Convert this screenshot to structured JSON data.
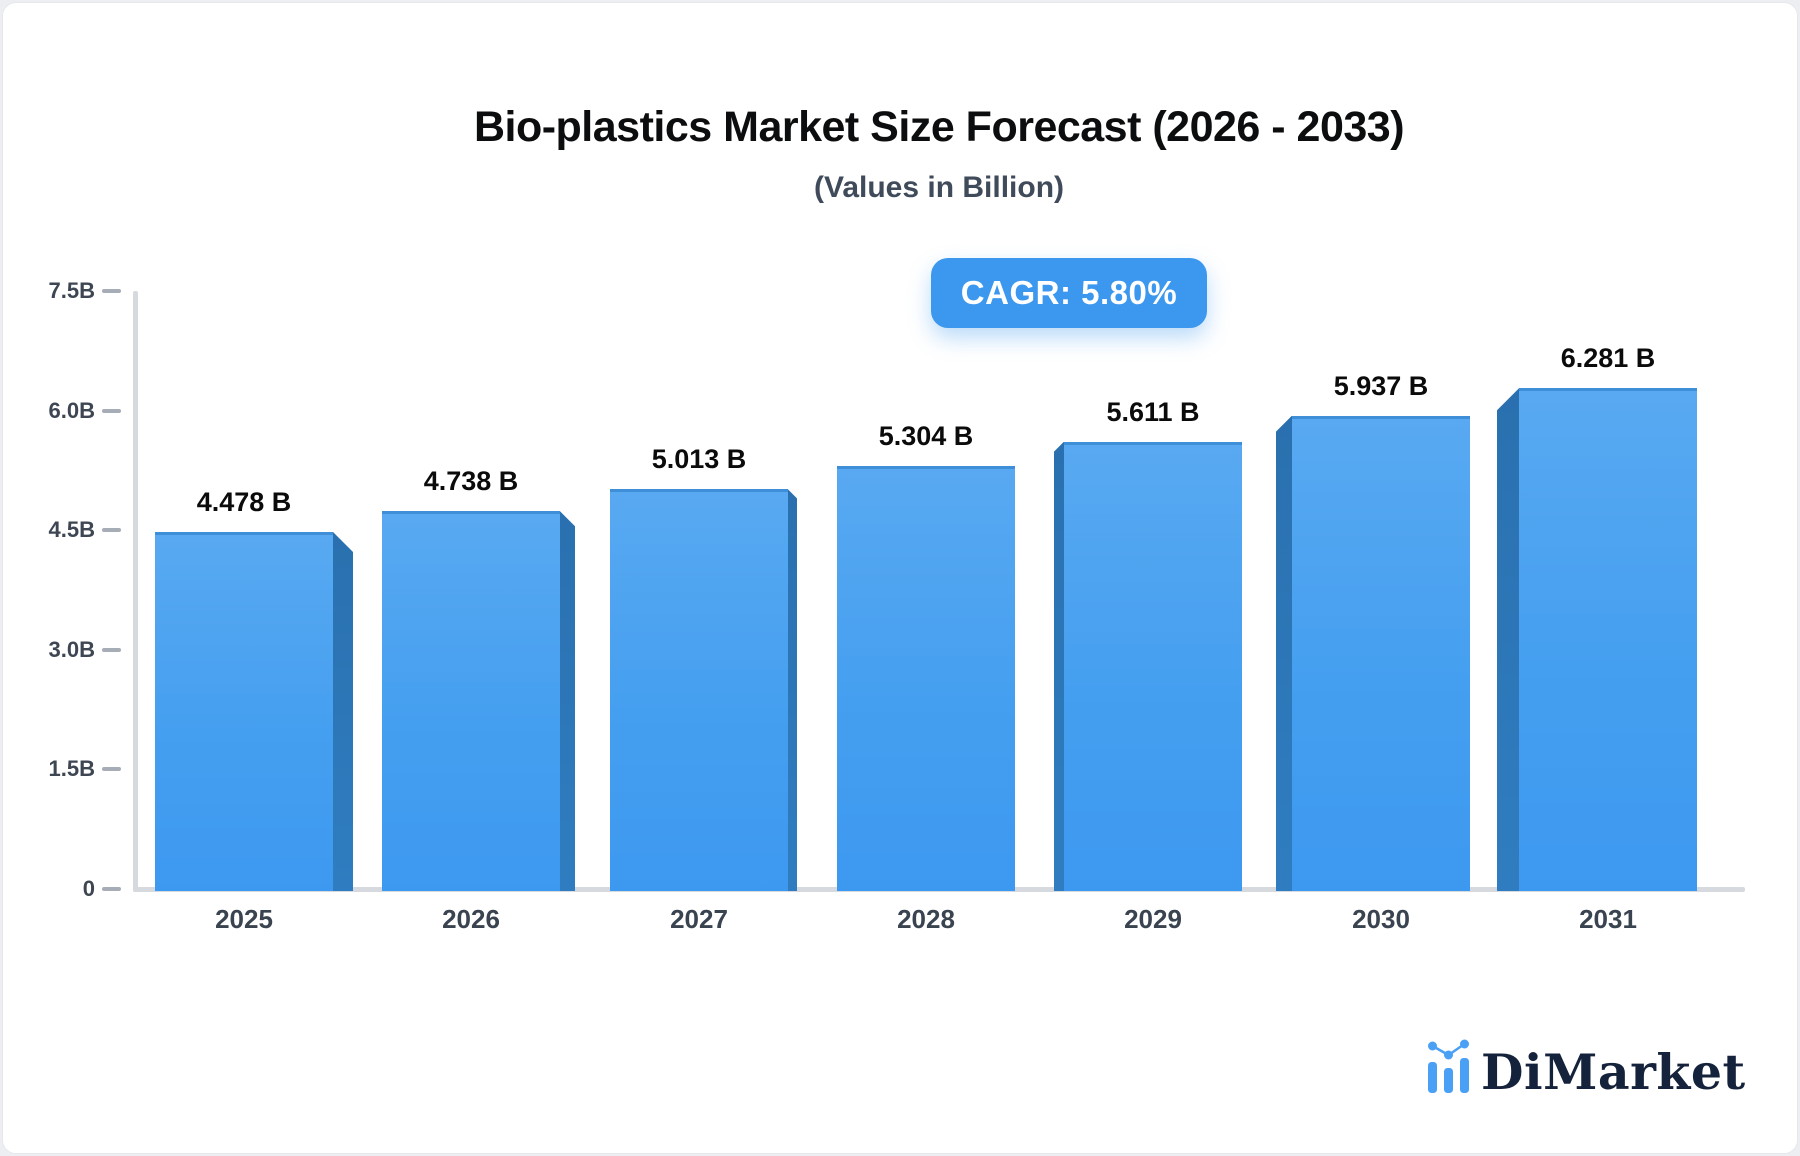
{
  "page": {
    "title": "Bio-plastics Market Size Forecast (2026 - 2033)",
    "subtitle": "(Values in Billion)",
    "cagr_badge": "CAGR: 5.80%"
  },
  "brand": {
    "name": "DiMarket"
  },
  "colors": {
    "accent_blue": "#3b98ee",
    "bar_face_top": "#58a9f1",
    "bar_face_bottom": "#3d99f0",
    "bar_side": "#2d76b5",
    "axis_line": "#d6d9de",
    "tick_text": "#3d4652",
    "value_text": "#0b0b0c",
    "brand_navy": "#15223b",
    "brand_blue": "#4aa0f4"
  },
  "chart_data": {
    "type": "bar",
    "title": "Bio-plastics Market Size Forecast (2026 - 2033)",
    "subtitle": "(Values in Billion)",
    "annotation": "CAGR: 5.80%",
    "categories": [
      "2025",
      "2026",
      "2027",
      "2028",
      "2029",
      "2030",
      "2031"
    ],
    "values": [
      4.478,
      4.738,
      5.013,
      5.304,
      5.611,
      5.937,
      6.281
    ],
    "data_labels": [
      "4.478 B",
      "4.738 B",
      "5.013 B",
      "5.304 B",
      "5.611 B",
      "5.937 B",
      "6.281 B"
    ],
    "xlabel": "",
    "ylabel": "",
    "ylim": [
      0,
      7.5
    ],
    "y_tick_values": [
      0,
      1.5,
      3.0,
      4.5,
      6.0,
      7.5
    ],
    "y_tick_labels": [
      "0",
      "1.5B",
      "3.0B",
      "4.5B",
      "6.0B",
      "7.5B"
    ],
    "grid": false,
    "legend": false,
    "bar_style": "3d-beveled"
  }
}
